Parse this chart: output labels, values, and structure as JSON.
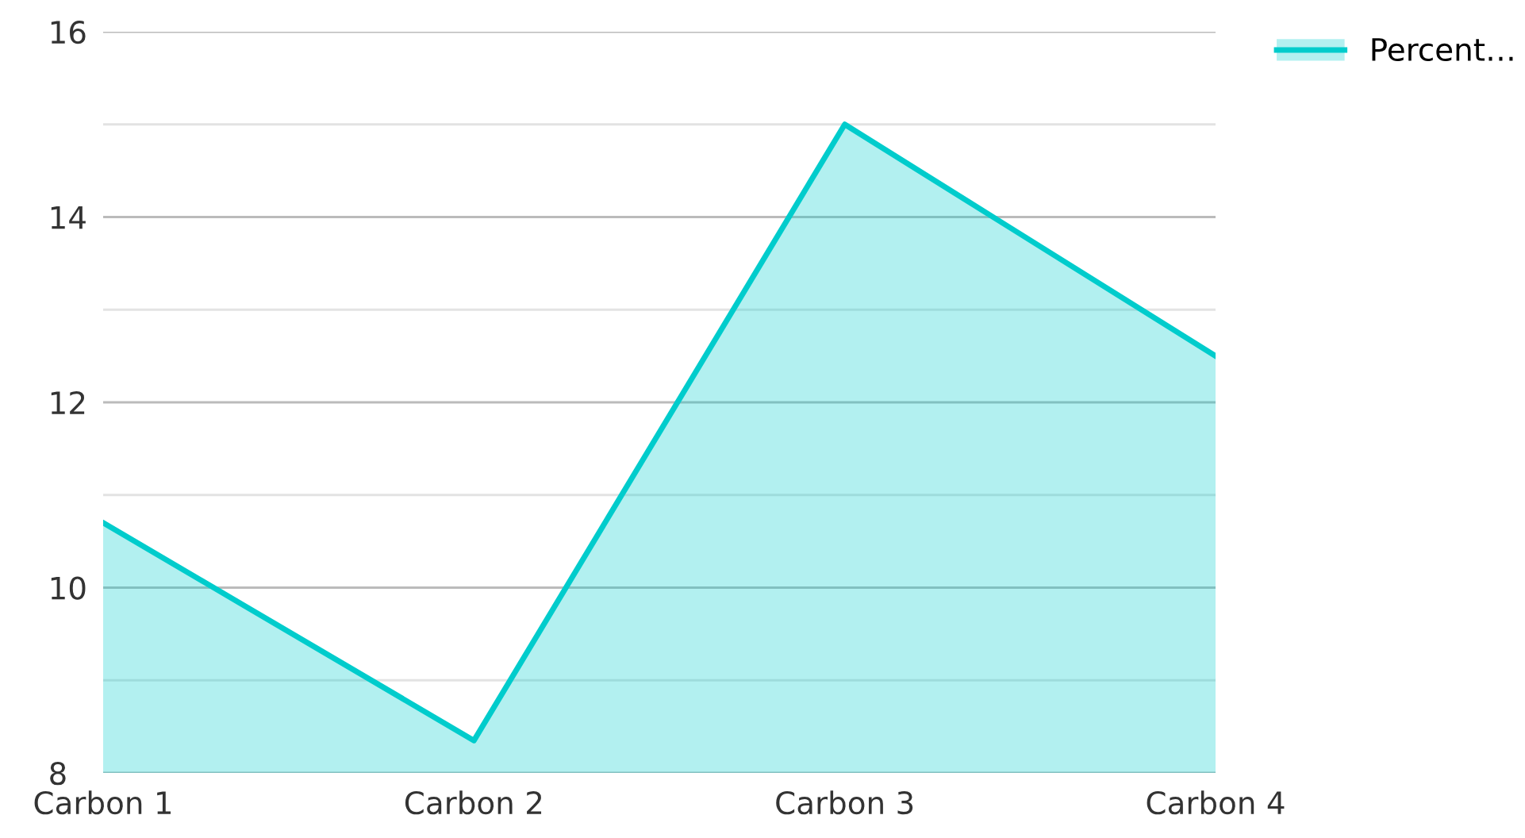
{
  "chart_data": {
    "type": "area",
    "categories": [
      "Carbon 1",
      "Carbon 2",
      "Carbon 3",
      "Carbon 4"
    ],
    "series": [
      {
        "name": "Percent…",
        "color": "#00cccc",
        "values": [
          10.7,
          8.35,
          15.0,
          12.5
        ]
      }
    ],
    "ylim": [
      8,
      16
    ],
    "yticks": [
      8,
      {
        "value": 9,
        "label": null
      },
      10,
      {
        "value": 11,
        "label": null
      },
      12,
      {
        "value": 13,
        "label": null
      },
      14,
      {
        "value": 15,
        "label": null
      },
      16
    ],
    "grid": "y",
    "legend": "top right"
  }
}
